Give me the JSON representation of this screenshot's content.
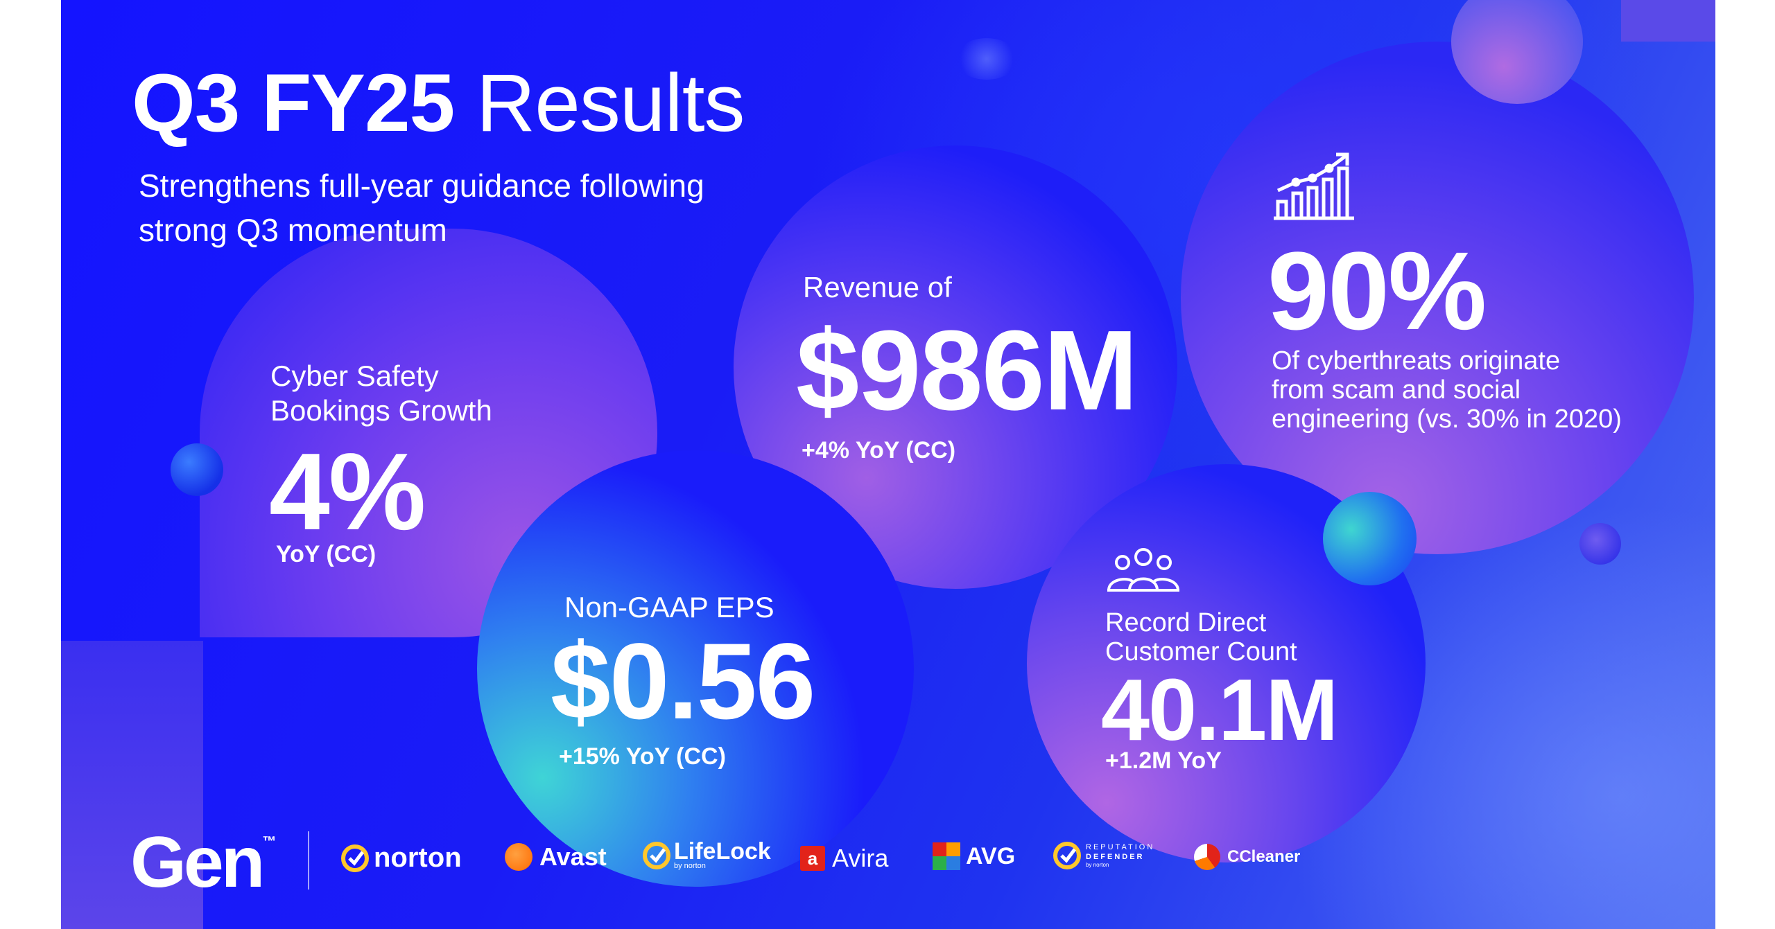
{
  "title": {
    "bold": "Q3 FY25",
    "light": "Results"
  },
  "subtitle": {
    "line1": "Strengthens full-year guidance following",
    "line2": "strong Q3 momentum"
  },
  "metrics": {
    "bookings": {
      "label_line1": "Cyber Safety",
      "label_line2": "Bookings Growth",
      "value": "4%",
      "note": "YoY (CC)"
    },
    "revenue": {
      "label": "Revenue of",
      "value": "$986M",
      "note": "+4% YoY (CC)"
    },
    "cyberthreats": {
      "value": "90%",
      "line1": "Of cyberthreats originate",
      "line2": "from scam and social",
      "line3": "engineering (vs. 30% in 2020)",
      "icon": "growth-chart-icon"
    },
    "eps": {
      "label": "Non-GAAP EPS",
      "value": "$0.56",
      "note": "+15% YoY (CC)"
    },
    "customers": {
      "label_line1": "Record Direct",
      "label_line2": "Customer Count",
      "value": "40.1M",
      "note": "+1.2M YoY",
      "icon": "people-group-icon"
    }
  },
  "brands": {
    "gen": "Gen",
    "gen_tm": "™",
    "norton": "norton",
    "avast": "Avast",
    "lifelock": "LifeLock",
    "lifelock_sub": "by norton",
    "avira": "Avira",
    "avg": "AVG",
    "reputation_line1": "REPUTATION",
    "reputation_line2": "DEFENDER",
    "reputation_sub": "by norton",
    "ccleaner": "CCleaner"
  },
  "colors": {
    "background": "#1414ff",
    "bubble_accent": "#9a4fe0",
    "teal_accent": "#3fc7d6",
    "text": "#ffffff",
    "norton_yellow": "#ffc72c",
    "avast_orange": "#ff7800",
    "avira_red": "#e2231a"
  }
}
